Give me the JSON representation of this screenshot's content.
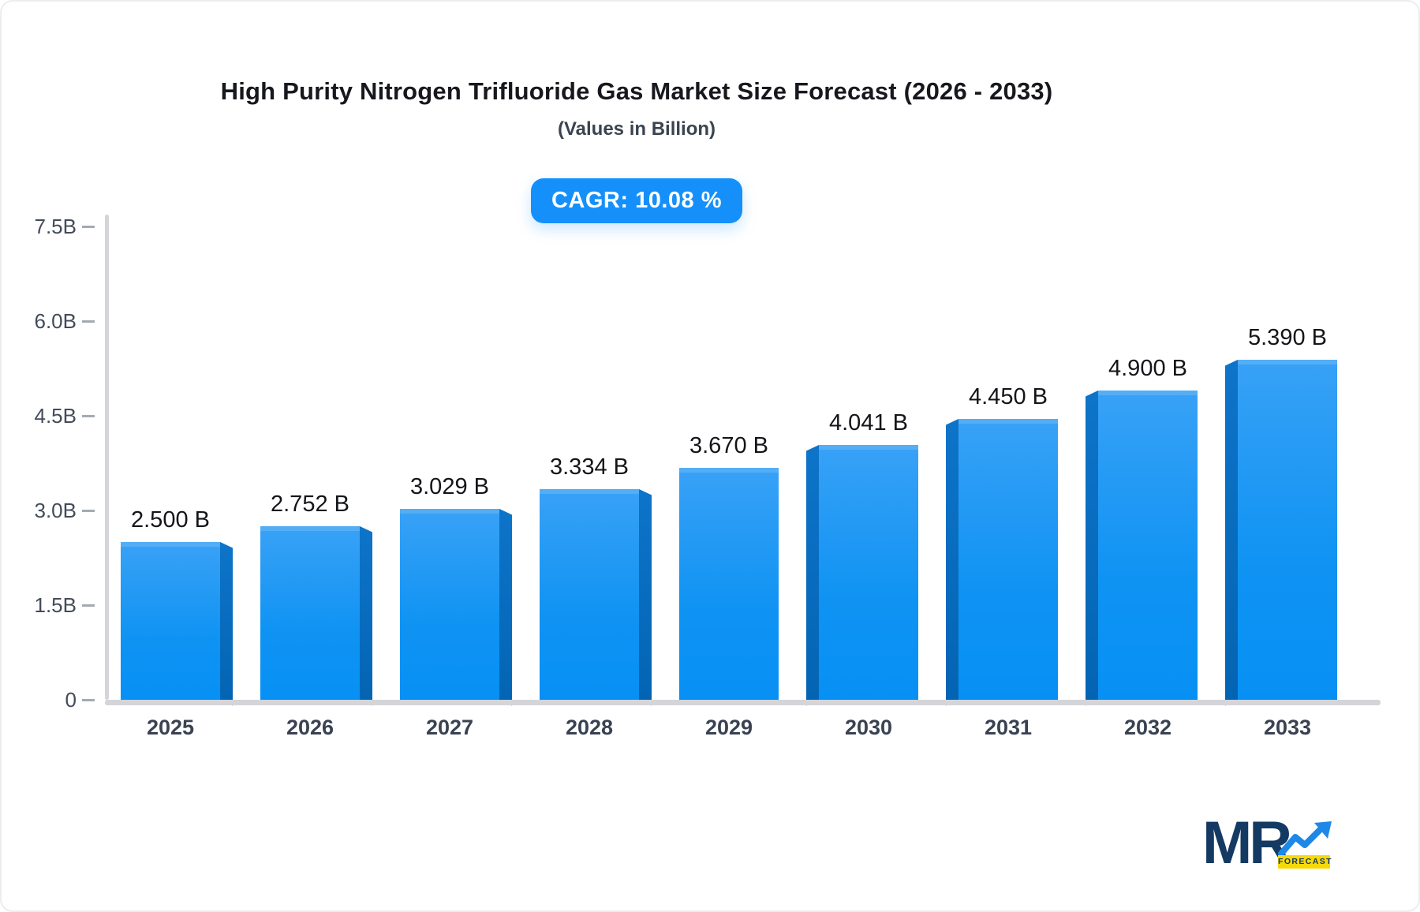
{
  "header": {
    "title": "High Purity Nitrogen Trifluoride Gas Market Size Forecast (2026 - 2033)",
    "subtitle": "(Values in Billion)",
    "cagr_badge": "CAGR: 10.08 %"
  },
  "chart_data": {
    "type": "bar",
    "title": "High Purity Nitrogen Trifluoride Gas Market Size Forecast (2026 - 2033)",
    "subtitle": "(Values in Billion)",
    "unit": "Billion",
    "cagr": "10.08 %",
    "categories": [
      "2025",
      "2026",
      "2027",
      "2028",
      "2029",
      "2030",
      "2031",
      "2032",
      "2033"
    ],
    "values": [
      2.5,
      2.752,
      3.029,
      3.334,
      3.67,
      4.041,
      4.45,
      4.9,
      5.39
    ],
    "bar_labels": [
      "2.500 B",
      "2.752 B",
      "3.029 B",
      "3.334 B",
      "3.670 B",
      "4.041 B",
      "4.450 B",
      "4.900 B",
      "5.390 B"
    ],
    "ylim": [
      0,
      7.5
    ],
    "yticks": [
      {
        "label": "7.5B",
        "value": 7.5
      },
      {
        "label": "6.0B",
        "value": 6.0
      },
      {
        "label": "4.5B",
        "value": 4.5
      },
      {
        "label": "3.0B",
        "value": 3.0
      },
      {
        "label": "1.5B",
        "value": 1.5
      },
      {
        "label": "0",
        "value": 0
      }
    ],
    "grid": false,
    "legend": false,
    "colors": {
      "bar_front_top": "#37a1f6",
      "bar_front_bottom": "#0790f4",
      "bar_top_highlight": "#54aef6",
      "bar_side": "#0464b3",
      "axis": "#d3d5d9",
      "badge_bg": "#1590fa",
      "badge_text": "#ffffff"
    }
  },
  "logo": {
    "mr": "MR",
    "forecast": "FORECAST",
    "colors": {
      "navy": "#143a63",
      "yellow": "#f8d908",
      "arrow": "#1e88e8"
    }
  }
}
